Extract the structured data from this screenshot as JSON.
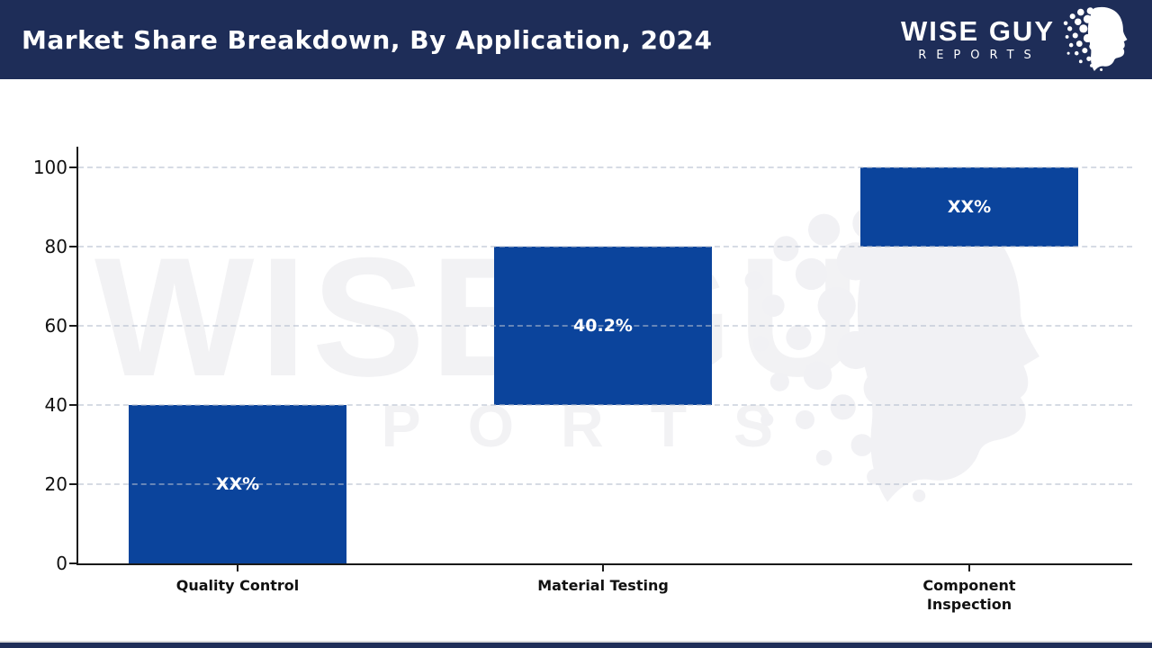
{
  "header": {
    "title": "Market Share Breakdown, By Application, 2024",
    "logo": {
      "wordmark": "WISE GUY",
      "subtext": "REPORTS"
    }
  },
  "watermark": {
    "wordmark": "WISE GUY",
    "subtext": "REPORTS"
  },
  "colors": {
    "header_bg": "#1e2d58",
    "footer_bar": "#1e2d58",
    "bar_fill": "#0b449c",
    "bar_label_text": "#ffffff",
    "axis": "#1a1a1a",
    "tick_text": "#111111",
    "gridline": "rgba(180,190,205,0.55)",
    "watermark_gray": "#f2f2f4"
  },
  "chart_data": {
    "type": "bar",
    "subtype": "floating-segment-waterfall",
    "title": "Market Share Breakdown, By Application, 2024",
    "categories": [
      "Quality Control",
      "Material Testing",
      "Component Inspection"
    ],
    "category_label_lines": [
      [
        "Quality Control"
      ],
      [
        "Material Testing"
      ],
      [
        "Component",
        "Inspection"
      ]
    ],
    "segments": [
      {
        "category": "Quality Control",
        "from": 0,
        "to": 40,
        "label": "XX%"
      },
      {
        "category": "Material Testing",
        "from": 40,
        "to": 80,
        "label": "40.2%"
      },
      {
        "category": "Component Inspection",
        "from": 80,
        "to": 100,
        "label": "XX%"
      }
    ],
    "ylim": [
      0,
      100
    ],
    "yticks": [
      0,
      20,
      40,
      60,
      80,
      100
    ],
    "xlabel": "",
    "ylabel": "",
    "grid": "horizontal-dashed",
    "legend": "none"
  }
}
